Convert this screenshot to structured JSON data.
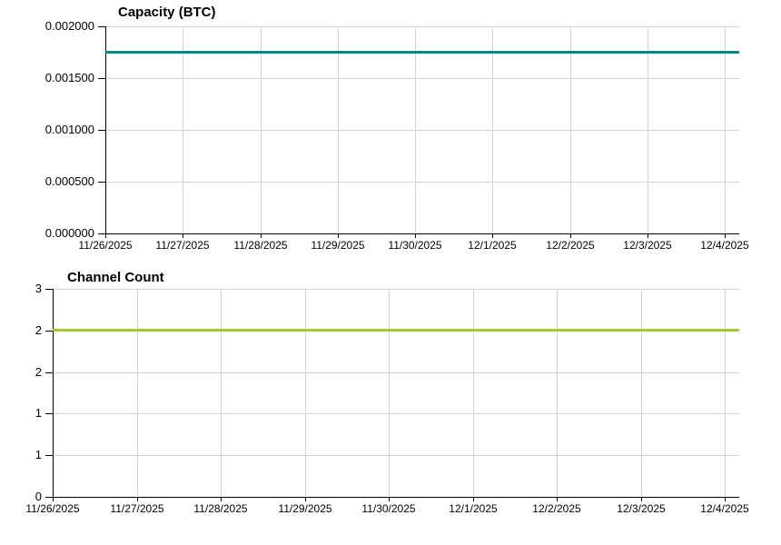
{
  "page": {
    "background": "#ffffff",
    "grid_color": "#d3d3d3",
    "axis_color": "#000000",
    "text_color": "#000000"
  },
  "chart_data": [
    {
      "type": "line",
      "title": "Capacity (BTC)",
      "x": [
        "11/26/2025",
        "11/27/2025",
        "11/28/2025",
        "11/29/2025",
        "11/30/2025",
        "12/1/2025",
        "12/2/2025",
        "12/3/2025",
        "12/4/2025"
      ],
      "series": [
        {
          "name": "Capacity (BTC)",
          "values": [
            0.00175,
            0.00175,
            0.00175,
            0.00175,
            0.00175,
            0.00175,
            0.00175,
            0.00175,
            0.00175
          ]
        }
      ],
      "ylim": [
        0,
        0.002
      ],
      "y_tick_labels": [
        "0.002000",
        "0.001500",
        "0.001000",
        "0.000500",
        "0.000000"
      ],
      "line_color": "#008B8B",
      "grid": true,
      "legend": false,
      "xlabel": "",
      "ylabel": ""
    },
    {
      "type": "line",
      "title": "Channel Count",
      "x": [
        "11/26/2025",
        "11/27/2025",
        "11/28/2025",
        "11/29/2025",
        "11/30/2025",
        "12/1/2025",
        "12/2/2025",
        "12/3/2025",
        "12/4/2025"
      ],
      "series": [
        {
          "name": "Channel Count",
          "values": [
            2,
            2,
            2,
            2,
            2,
            2,
            2,
            2,
            2
          ]
        }
      ],
      "ylim": [
        0,
        2.5
      ],
      "y_tick_labels": [
        "3",
        "2",
        "2",
        "1",
        "1",
        "0"
      ],
      "line_color": "#9ACD32",
      "grid": true,
      "legend": false,
      "xlabel": "",
      "ylabel": ""
    }
  ]
}
